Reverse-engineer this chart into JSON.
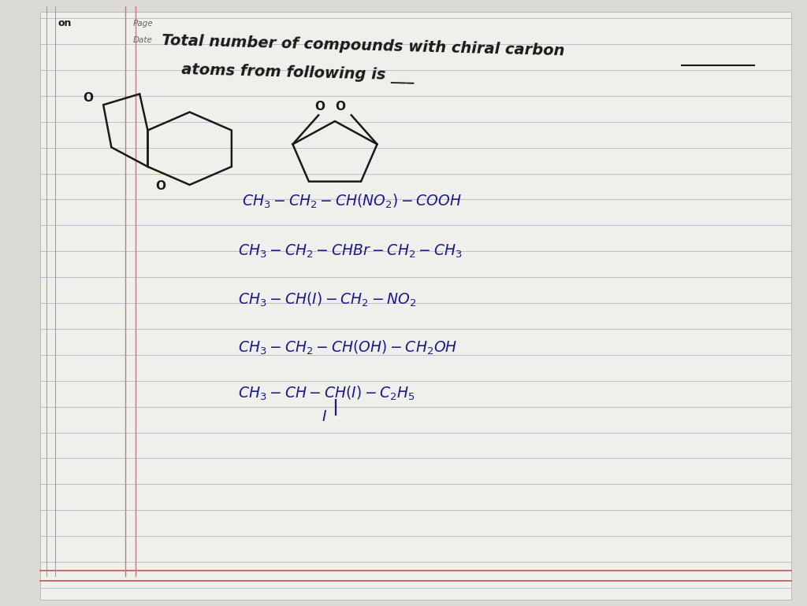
{
  "background_color": "#dcdad4",
  "page_color": "#efefeb",
  "line_color": "#b0b8c8",
  "red_line_color": "#c86060",
  "margin_line_color": "#c87878",
  "title_text": "Total number of compounds with chiral carbon",
  "subtitle_text": "atoms from following is ___",
  "page_label": "Page",
  "date_label": "Date",
  "ink_color": "#1a1a8c",
  "black_ink": "#1a1a1a",
  "num_lines": 22
}
